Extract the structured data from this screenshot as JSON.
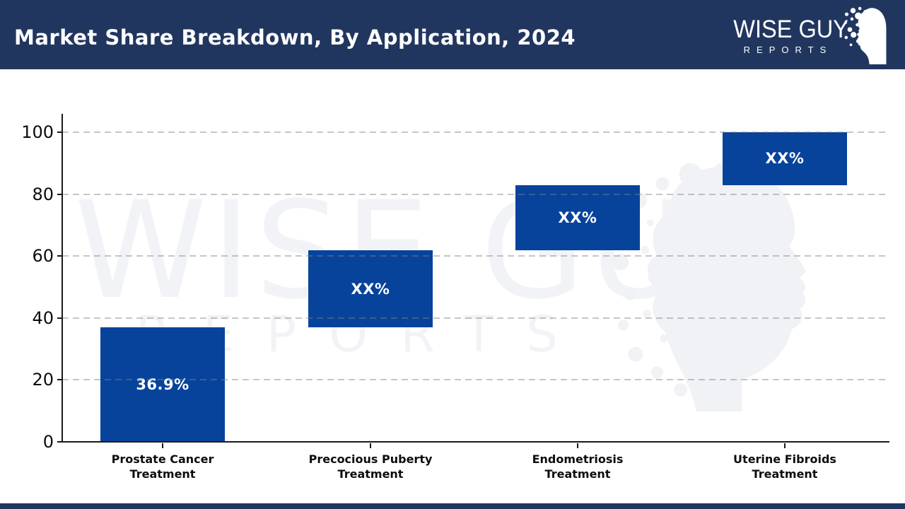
{
  "header": {
    "title": "Market Share Breakdown, By Application, 2024",
    "logo": {
      "brand": "WISE GUY",
      "sub": "REPORTS"
    }
  },
  "watermark": {
    "brand": "WISE GUY",
    "sub": "REPORTS"
  },
  "colors": {
    "header_bg": "#21365f",
    "bar": "#07439b",
    "grid": "rgba(128,128,128,0.45)",
    "watermark": "#f2f3f6",
    "axis": "#1a1a1a",
    "label_on_bar": "#ffffff"
  },
  "chart_data": {
    "type": "bar",
    "subtype": "waterfall",
    "title": "Market Share Breakdown, By Application, 2024",
    "xlabel": "",
    "ylabel": "",
    "ylim": [
      0,
      106
    ],
    "yticks": [
      0,
      20,
      40,
      60,
      80,
      100
    ],
    "grid": "horizontal-dashed",
    "legend": "none",
    "bar_color": "#07439b",
    "categories": [
      {
        "line1": "Prostate Cancer",
        "line2": "Treatment"
      },
      {
        "line1": "Precocious Puberty",
        "line2": "Treatment"
      },
      {
        "line1": "Endometriosis",
        "line2": "Treatment"
      },
      {
        "line1": "Uterine Fibroids",
        "line2": "Treatment"
      }
    ],
    "segments": [
      {
        "start": 0,
        "end": 36.9,
        "label": "36.9%"
      },
      {
        "start": 36.9,
        "end": 61.9,
        "label": "XX%"
      },
      {
        "start": 61.9,
        "end": 82.9,
        "label": "XX%"
      },
      {
        "start": 82.9,
        "end": 100,
        "label": "XX%"
      }
    ]
  }
}
